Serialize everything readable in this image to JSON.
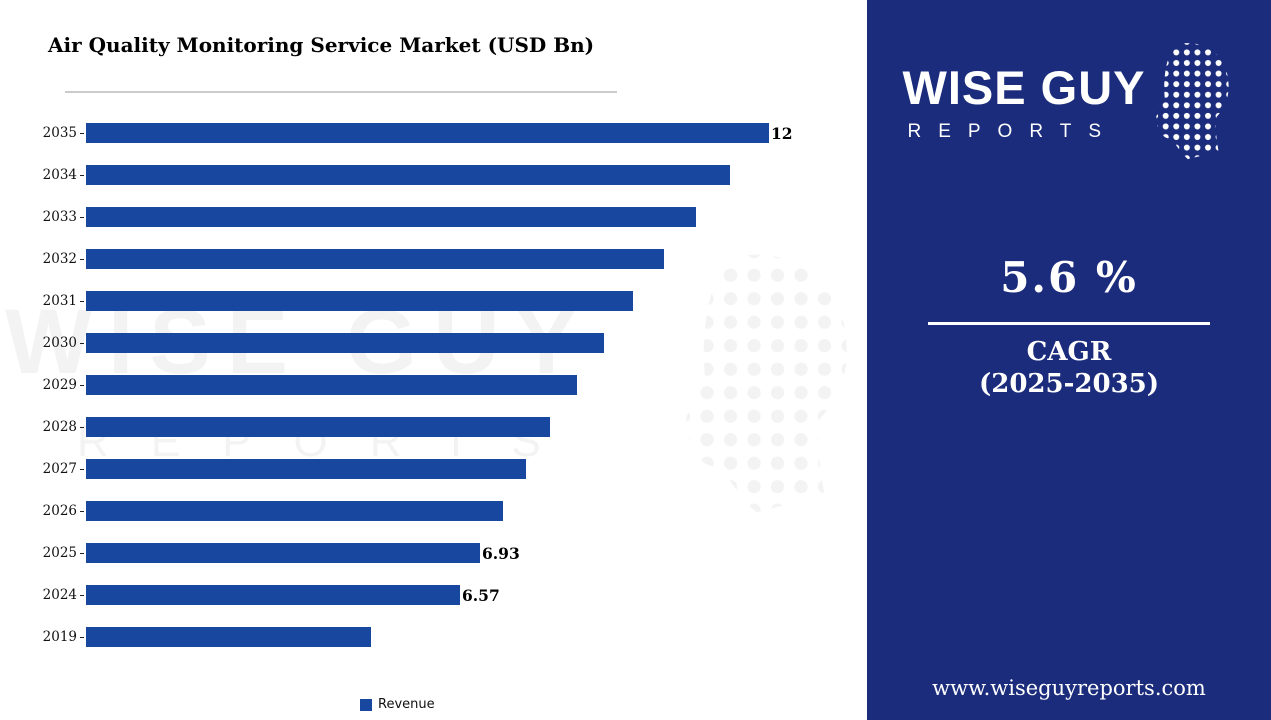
{
  "colors": {
    "bar": "#17479e",
    "sidebar_bg": "#1b2c7c",
    "divider": "#cbcbcb"
  },
  "chart_data": {
    "type": "bar",
    "orientation": "horizontal",
    "title": "Air Quality Monitoring Service Market (USD Bn)",
    "categories": [
      "2035",
      "2034",
      "2033",
      "2032",
      "2031",
      "2030",
      "2029",
      "2028",
      "2027",
      "2026",
      "2025",
      "2024",
      "2019"
    ],
    "values": [
      12,
      11.32,
      10.72,
      10.15,
      9.61,
      9.1,
      8.62,
      8.16,
      7.73,
      7.32,
      6.93,
      6.57,
      5.0
    ],
    "bar_labels": [
      "12",
      "",
      "",
      "",
      "",
      "",
      "",
      "",
      "",
      "",
      "6.93",
      "6.57",
      ""
    ],
    "xlim": [
      0,
      12
    ],
    "xlabel": "",
    "ylabel": "",
    "grid": false,
    "legend": [
      "Revenue"
    ],
    "legend_position": "bottom"
  },
  "watermark": {
    "line1": "WISE GUY",
    "line2": "REPORTS"
  },
  "sidebar": {
    "logo_line1": "WISE GUY",
    "logo_line2": "REPORTS",
    "cagr_value": "5.6 %",
    "cagr_label": "CAGR",
    "cagr_period": "(2025-2035)",
    "website": "www.wiseguyreports.com"
  }
}
